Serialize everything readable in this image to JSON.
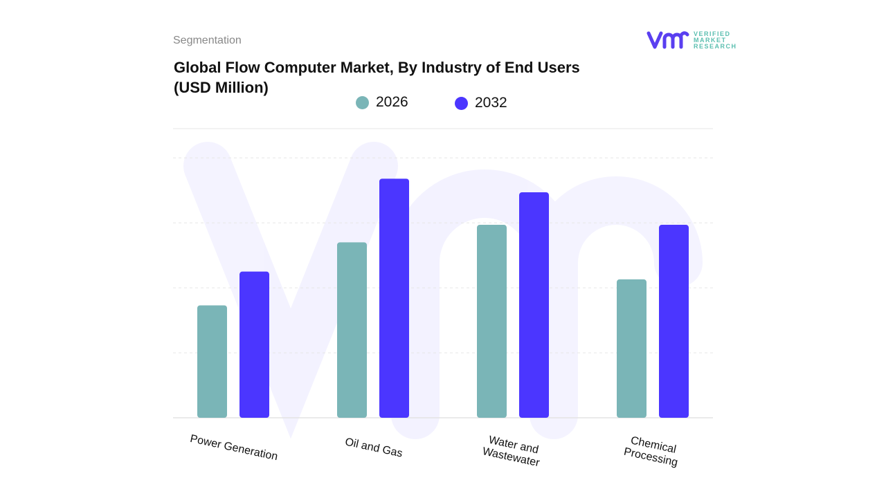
{
  "header": {
    "section": "Segmentation",
    "title_line1": "Global Flow Computer Market, By Industry of End Users",
    "title_line2": "(USD Million)"
  },
  "logo": {
    "line1": "VERIFIED",
    "line2": "MARKET",
    "line3": "RESEARCH",
    "mark": "vmr"
  },
  "chart_data": {
    "type": "bar",
    "title": "Global Flow Computer Market, By Industry of End Users (USD Million)",
    "categories": [
      [
        "Power Generation"
      ],
      [
        "Oil and Gas"
      ],
      [
        "Water and",
        "Wastewater"
      ],
      [
        "Chemical",
        "Processing"
      ]
    ],
    "series": [
      {
        "name": "2026",
        "color": "#7ab5b7",
        "values": [
          1.73,
          2.7,
          2.97,
          2.13
        ]
      },
      {
        "name": "2032",
        "color": "#4b36ff",
        "values": [
          2.25,
          3.68,
          3.47,
          2.97
        ]
      }
    ],
    "ylim": [
      0,
      4.45
    ],
    "grid": true,
    "legend": "top-center",
    "xlabel": "",
    "ylabel": ""
  }
}
